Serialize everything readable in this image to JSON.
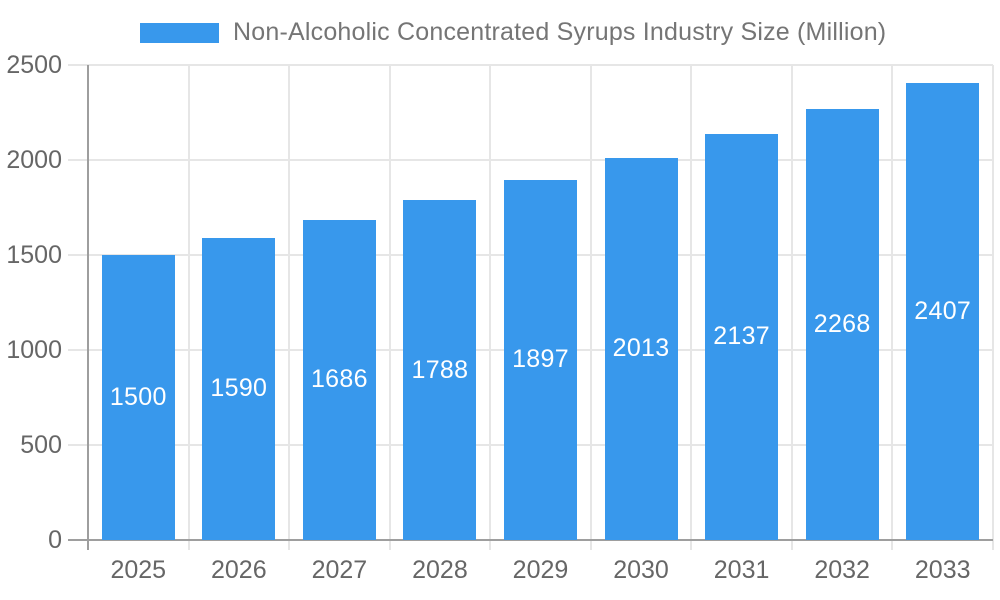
{
  "chart_data": {
    "type": "bar",
    "title": "Non-Alcoholic Concentrated Syrups Industry Size (Million)",
    "categories": [
      "2025",
      "2026",
      "2027",
      "2028",
      "2029",
      "2030",
      "2031",
      "2032",
      "2033"
    ],
    "values": [
      1500,
      1590,
      1686,
      1788,
      1897,
      2013,
      2137,
      2268,
      2407
    ],
    "xlabel": "",
    "ylabel": "",
    "ylim": [
      0,
      2500
    ],
    "yticks": [
      0,
      500,
      1000,
      1500,
      2000,
      2500
    ],
    "grid": "on",
    "legend_position": "top",
    "bar_color": "#3898ec",
    "bar_label_color": "#ffffff",
    "gridline_color": "#e6e6e6",
    "axis_line_color": "#9e9e9e",
    "axis_text_color": "#666666",
    "title_text_color": "#757575"
  }
}
